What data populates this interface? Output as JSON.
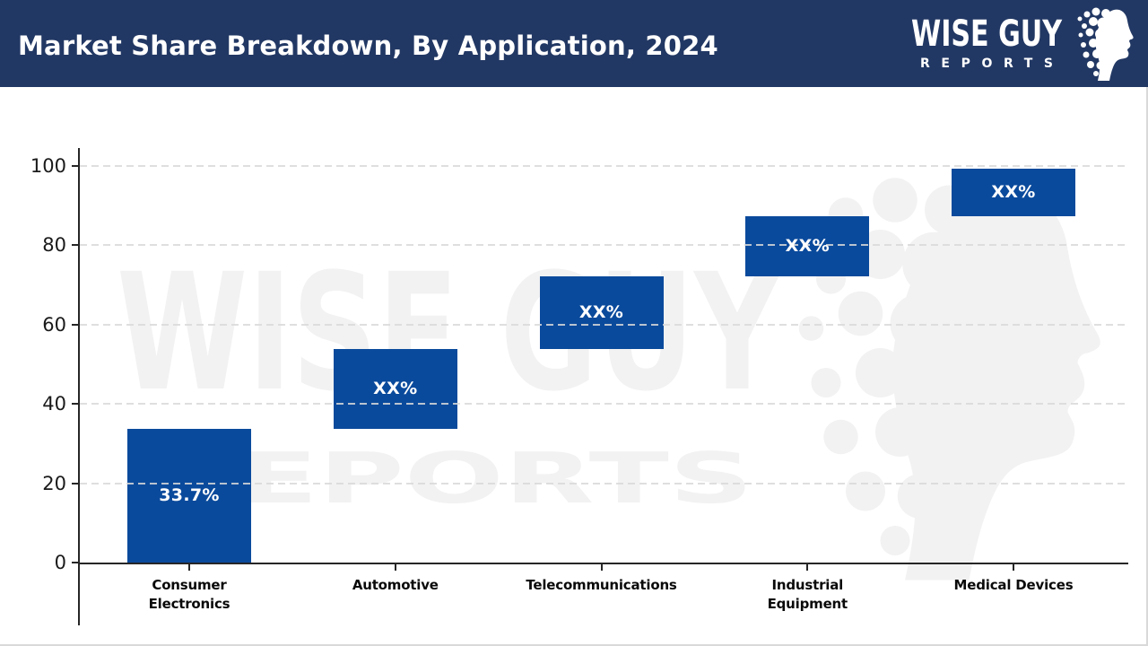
{
  "header": {
    "title": "Market Share Breakdown, By Application, 2024",
    "logo": {
      "name": "WISE GUY",
      "tagline": "REPORTS"
    }
  },
  "watermark": {
    "line1": "WISE GUY",
    "line2": "REPORTS"
  },
  "chart_data": {
    "type": "bar",
    "subtype": "waterfall",
    "title": "Market Share Breakdown, By Application, 2024",
    "categories": [
      "Consumer Electronics",
      "Automotive",
      "Telecommunications",
      "Industrial Equipment",
      "Medical Devices"
    ],
    "category_label_lines": [
      [
        "Consumer",
        "Electronics"
      ],
      [
        "Automotive"
      ],
      [
        "Telecommunications"
      ],
      [
        "Industrial",
        "Equipment"
      ],
      [
        "Medical Devices"
      ]
    ],
    "segments": [
      {
        "category": "Consumer Electronics",
        "start": 0,
        "end": 33.7,
        "label": "33.7%"
      },
      {
        "category": "Automotive",
        "start": 33.7,
        "end": 53.7,
        "label": "XX%"
      },
      {
        "category": "Telecommunications",
        "start": 53.7,
        "end": 72.0,
        "label": "XX%"
      },
      {
        "category": "Industrial Equipment",
        "start": 72.0,
        "end": 87.2,
        "label": "XX%"
      },
      {
        "category": "Medical Devices",
        "start": 87.2,
        "end": 99.2,
        "label": "XX%"
      }
    ],
    "xlabel": "",
    "ylabel": "",
    "ylim": [
      0,
      104
    ],
    "yticks": [
      0,
      20,
      40,
      60,
      80,
      100
    ],
    "grid": "horizontal dashed",
    "legend": "none",
    "colors": {
      "bar": "#0a4a9c",
      "bar_label": "#ffffff",
      "header_bg": "#223864",
      "header_text": "#ffffff",
      "axis": "#262626",
      "tick_label": "#1a1a1a",
      "gridline": "#d9d9d9",
      "watermark": "#f2f2f2",
      "background": "#ffffff"
    }
  }
}
